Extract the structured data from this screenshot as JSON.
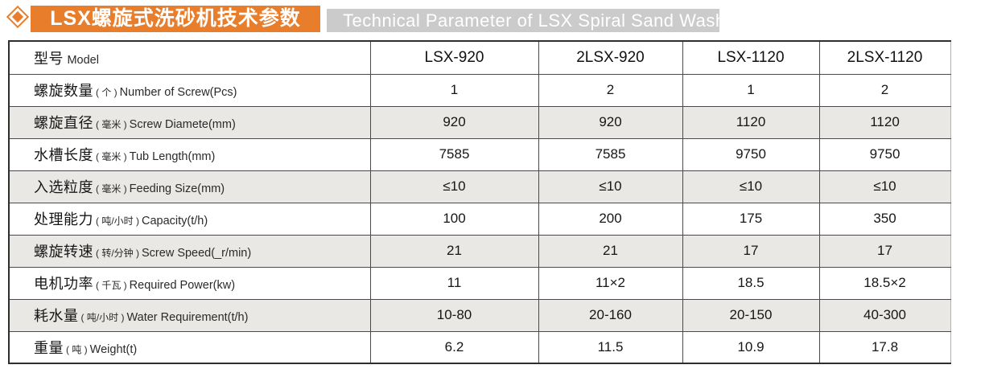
{
  "header": {
    "title_cn": "LSX螺旋式洗砂机技术参数",
    "title_en": "Technical Parameter of LSX Spiral Sand Washer",
    "accent_orange": "#e87e2b",
    "bar_gray": "#cbcbcb"
  },
  "table": {
    "header_label": {
      "cn": "型号",
      "en": "Model"
    },
    "columns": [
      "LSX-920",
      "2LSX-920",
      "LSX-1120",
      "2LSX-1120"
    ],
    "rows": [
      {
        "cn": "螺旋数量",
        "note": "( 个 )",
        "en": "Number of  Screw(Pcs)",
        "shaded": false,
        "values": [
          "1",
          "2",
          "1",
          "2"
        ]
      },
      {
        "cn": "螺旋直径",
        "note": "( 毫米 )",
        "en": "Screw Diamete(mm)",
        "shaded": true,
        "values": [
          "920",
          "920",
          "1120",
          "1120"
        ]
      },
      {
        "cn": "水槽长度",
        "note": "( 毫米 )",
        "en": "Tub Length(mm)",
        "shaded": false,
        "values": [
          "7585",
          "7585",
          "9750",
          "9750"
        ]
      },
      {
        "cn": "入选粒度",
        "note": "( 毫米 )",
        "en": "Feeding Size(mm)",
        "shaded": true,
        "values": [
          "≤10",
          "≤10",
          "≤10",
          "≤10"
        ]
      },
      {
        "cn": "处理能力",
        "note": "( 吨/小时 )",
        "en": "Capacity(t/h)",
        "shaded": false,
        "values": [
          "100",
          "200",
          "175",
          "350"
        ]
      },
      {
        "cn": "螺旋转速",
        "note": "( 转/分钟 )",
        "en": "Screw Speed(_r/min)",
        "shaded": true,
        "values": [
          "21",
          "21",
          "17",
          "17"
        ]
      },
      {
        "cn": "电机功率",
        "note": "( 千瓦 )",
        "en": "Required Power(kw)",
        "shaded": false,
        "values": [
          "11",
          "11×2",
          "18.5",
          "18.5×2"
        ]
      },
      {
        "cn": "耗水量",
        "note": "( 吨/小时 )",
        "en": "Water Requirement(t/h)",
        "shaded": true,
        "values": [
          "10-80",
          "20-160",
          "20-150",
          "40-300"
        ]
      },
      {
        "cn": "重量",
        "note": "( 吨 )",
        "en": "Weight(t)",
        "shaded": false,
        "values": [
          "6.2",
          "11.5",
          "10.9",
          "17.8"
        ]
      }
    ]
  }
}
